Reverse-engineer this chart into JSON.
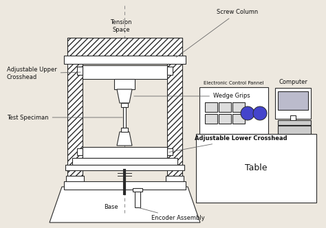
{
  "bg_color": "#ede8df",
  "line_color": "#2a2a2a",
  "white": "#ffffff",
  "gray_fill": "#cccccc",
  "blue_dial": "#4444cc",
  "labels": {
    "tension_space": "Tension\nSpace",
    "screw_column": "Screw Column",
    "upper_crosshead": "Adjustable Upper\nCrosshead",
    "wedge_grips": "Wedge Grips",
    "test_specimen": "Test Speciman",
    "lower_crosshead": "Adjustable Lower Crosshead",
    "base": "Base",
    "encoder": "Encoder Assembly",
    "control_panel": "Electronic Control Pannel",
    "computer": "Computer",
    "table": "Table"
  }
}
